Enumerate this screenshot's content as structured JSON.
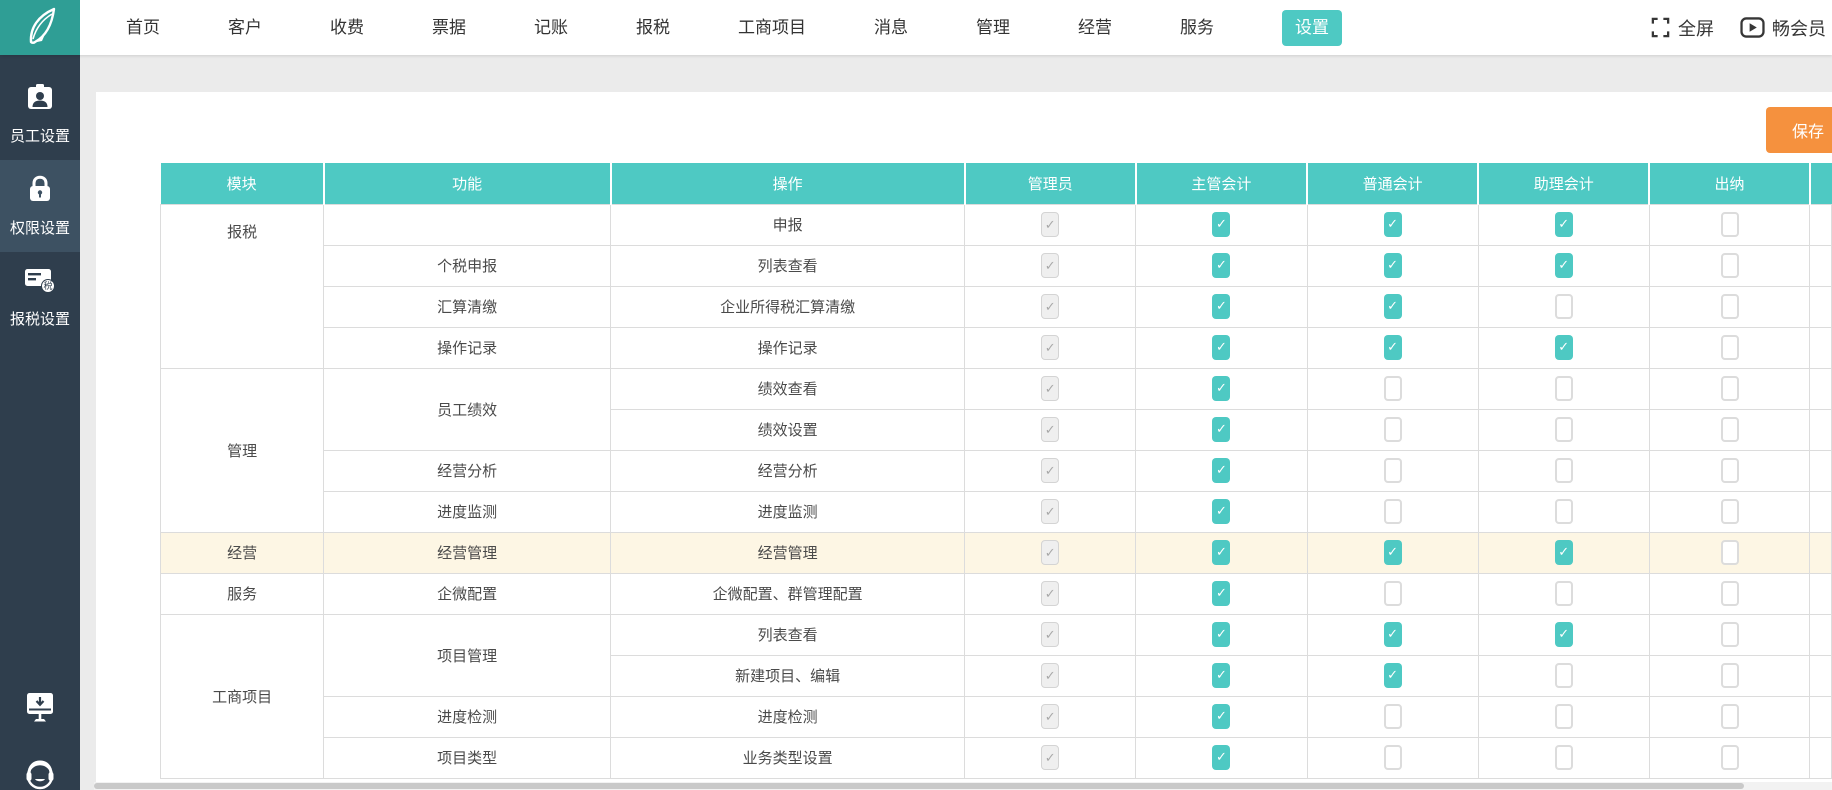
{
  "nav": {
    "items": [
      "首页",
      "客户",
      "收费",
      "票据",
      "记账",
      "报税",
      "工商项目",
      "消息",
      "管理",
      "经营",
      "服务",
      "设置"
    ],
    "active": "设置",
    "right": [
      {
        "icon": "fullscreen-icon",
        "label": "全屏"
      },
      {
        "icon": "member-play-icon",
        "label": "畅会员"
      }
    ]
  },
  "sidebar": {
    "items": [
      {
        "icon": "employee-badge",
        "label": "员工设置",
        "active": false
      },
      {
        "icon": "lock",
        "label": "权限设置",
        "active": true
      },
      {
        "icon": "tax-card",
        "label": "报税设置",
        "active": false
      }
    ],
    "bottom_icons": [
      "download-monitor",
      "headset-support"
    ]
  },
  "toolbar": {
    "save_label": "保存",
    "save_color": "#f5913e"
  },
  "table": {
    "headers": [
      "模块",
      "功能",
      "操作",
      "管理员",
      "主管会计",
      "普通会计",
      "助理会计",
      "出纳"
    ],
    "header_color": "#4ec9c3",
    "highlight_color": "#fdf6e4",
    "rows": [
      {
        "module": {
          "label": "报税",
          "span": 4,
          "align": "top"
        },
        "func": {
          "label": "",
          "span": 1
        },
        "op": "申报",
        "checks": [
          "admin",
          "on",
          "on",
          "on",
          "off"
        ]
      },
      {
        "func": {
          "label": "个税申报",
          "span": 1
        },
        "op": "列表查看",
        "checks": [
          "admin",
          "on",
          "on",
          "on",
          "off"
        ]
      },
      {
        "func": {
          "label": "汇算清缴",
          "span": 1
        },
        "op": "企业所得税汇算清缴",
        "checks": [
          "admin",
          "on",
          "on",
          "off",
          "off"
        ]
      },
      {
        "func": {
          "label": "操作记录",
          "span": 1
        },
        "op": "操作记录",
        "checks": [
          "admin",
          "on",
          "on",
          "on",
          "off"
        ]
      },
      {
        "module": {
          "label": "管理",
          "span": 4
        },
        "func": {
          "label": "员工绩效",
          "span": 2
        },
        "op": "绩效查看",
        "checks": [
          "admin",
          "on",
          "off",
          "off",
          "off"
        ]
      },
      {
        "op": "绩效设置",
        "checks": [
          "admin",
          "on",
          "off",
          "off",
          "off"
        ]
      },
      {
        "func": {
          "label": "经营分析",
          "span": 1
        },
        "op": "经营分析",
        "checks": [
          "admin",
          "on",
          "off",
          "off",
          "off"
        ]
      },
      {
        "func": {
          "label": "进度监测",
          "span": 1
        },
        "op": "进度监测",
        "checks": [
          "admin",
          "on",
          "off",
          "off",
          "off"
        ]
      },
      {
        "module": {
          "label": "经营",
          "span": 1
        },
        "func": {
          "label": "经营管理",
          "span": 1
        },
        "op": "经营管理",
        "checks": [
          "admin",
          "on",
          "on",
          "on",
          "off"
        ],
        "highlight": true
      },
      {
        "module": {
          "label": "服务",
          "span": 1
        },
        "func": {
          "label": "企微配置",
          "span": 1
        },
        "op": "企微配置、群管理配置",
        "checks": [
          "admin",
          "on",
          "off",
          "off",
          "off"
        ]
      },
      {
        "module": {
          "label": "工商项目",
          "span": 4
        },
        "func": {
          "label": "项目管理",
          "span": 2
        },
        "op": "列表查看",
        "checks": [
          "admin",
          "on",
          "on",
          "on",
          "off"
        ]
      },
      {
        "op": "新建项目、编辑",
        "checks": [
          "admin",
          "on",
          "on",
          "off",
          "off"
        ]
      },
      {
        "func": {
          "label": "进度检测",
          "span": 1
        },
        "op": "进度检测",
        "checks": [
          "admin",
          "on",
          "off",
          "off",
          "off"
        ]
      },
      {
        "func": {
          "label": "项目类型",
          "span": 1
        },
        "op": "业务类型设置",
        "checks": [
          "admin",
          "on",
          "off",
          "off",
          "off"
        ]
      }
    ]
  }
}
